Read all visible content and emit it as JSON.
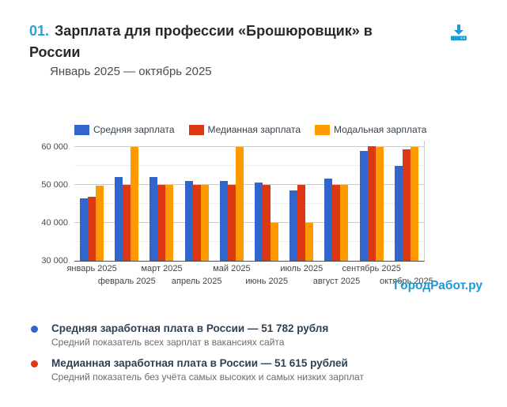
{
  "header": {
    "number": "01.",
    "title_line1": "Зарплата для профессии «Брошюровщик» в",
    "title_line2": "России",
    "subtitle": "Январь 2025 — октябрь 2025"
  },
  "colors": {
    "accent_blue": "#2d9fd9",
    "download_icon": "#1e9cd7",
    "watermark_blue": "#1d9ad6",
    "bar_average": "#3366cc",
    "bar_median": "#dc3912",
    "bar_modal": "#ff9900"
  },
  "chart_data": {
    "type": "bar",
    "categories": [
      "январь 2025",
      "февраль 2025",
      "март 2025",
      "апрель 2025",
      "май 2025",
      "июнь 2025",
      "июль 2025",
      "август 2025",
      "сентябрь 2025",
      "октябрь 2025"
    ],
    "series": [
      {
        "key": "average",
        "name": "Средняя зарплата",
        "color": "#3366cc",
        "values": [
          46400,
          52100,
          52000,
          51000,
          51100,
          50600,
          48600,
          51700,
          58900,
          54900
        ]
      },
      {
        "key": "median",
        "name": "Медианная зарплата",
        "color": "#dc3912",
        "values": [
          46800,
          50000,
          49900,
          50000,
          49900,
          50000,
          50000,
          49900,
          60200,
          59300
        ]
      },
      {
        "key": "modal",
        "name": "Модальная зарплата",
        "color": "#ff9900",
        "values": [
          49800,
          59900,
          49900,
          49900,
          59900,
          39900,
          39900,
          49900,
          60100,
          59900
        ]
      }
    ],
    "ylim": [
      30000,
      61667
    ],
    "yticks": [
      {
        "value": 30000,
        "label": "30 000"
      },
      {
        "value": 40000,
        "label": "40 000"
      },
      {
        "value": 50000,
        "label": "50 000"
      },
      {
        "value": 60000,
        "label": "60 000"
      }
    ],
    "minor_gridlines": [
      35000,
      45000,
      55000
    ],
    "grid": true,
    "legend_position": "top"
  },
  "watermark": "ГородРабот.ру",
  "notes": [
    {
      "dot_color": "#3366cc",
      "title": "Средняя заработная плата в России — 51 782 рубля",
      "subtitle": "Средний показатель всех зарплат в вакансиях сайта"
    },
    {
      "dot_color": "#dc3912",
      "title": "Медианная заработная плата в России — 51 615 рублей",
      "subtitle": "Средний показатель без учёта самых высоких и самых низких зарплат"
    }
  ]
}
